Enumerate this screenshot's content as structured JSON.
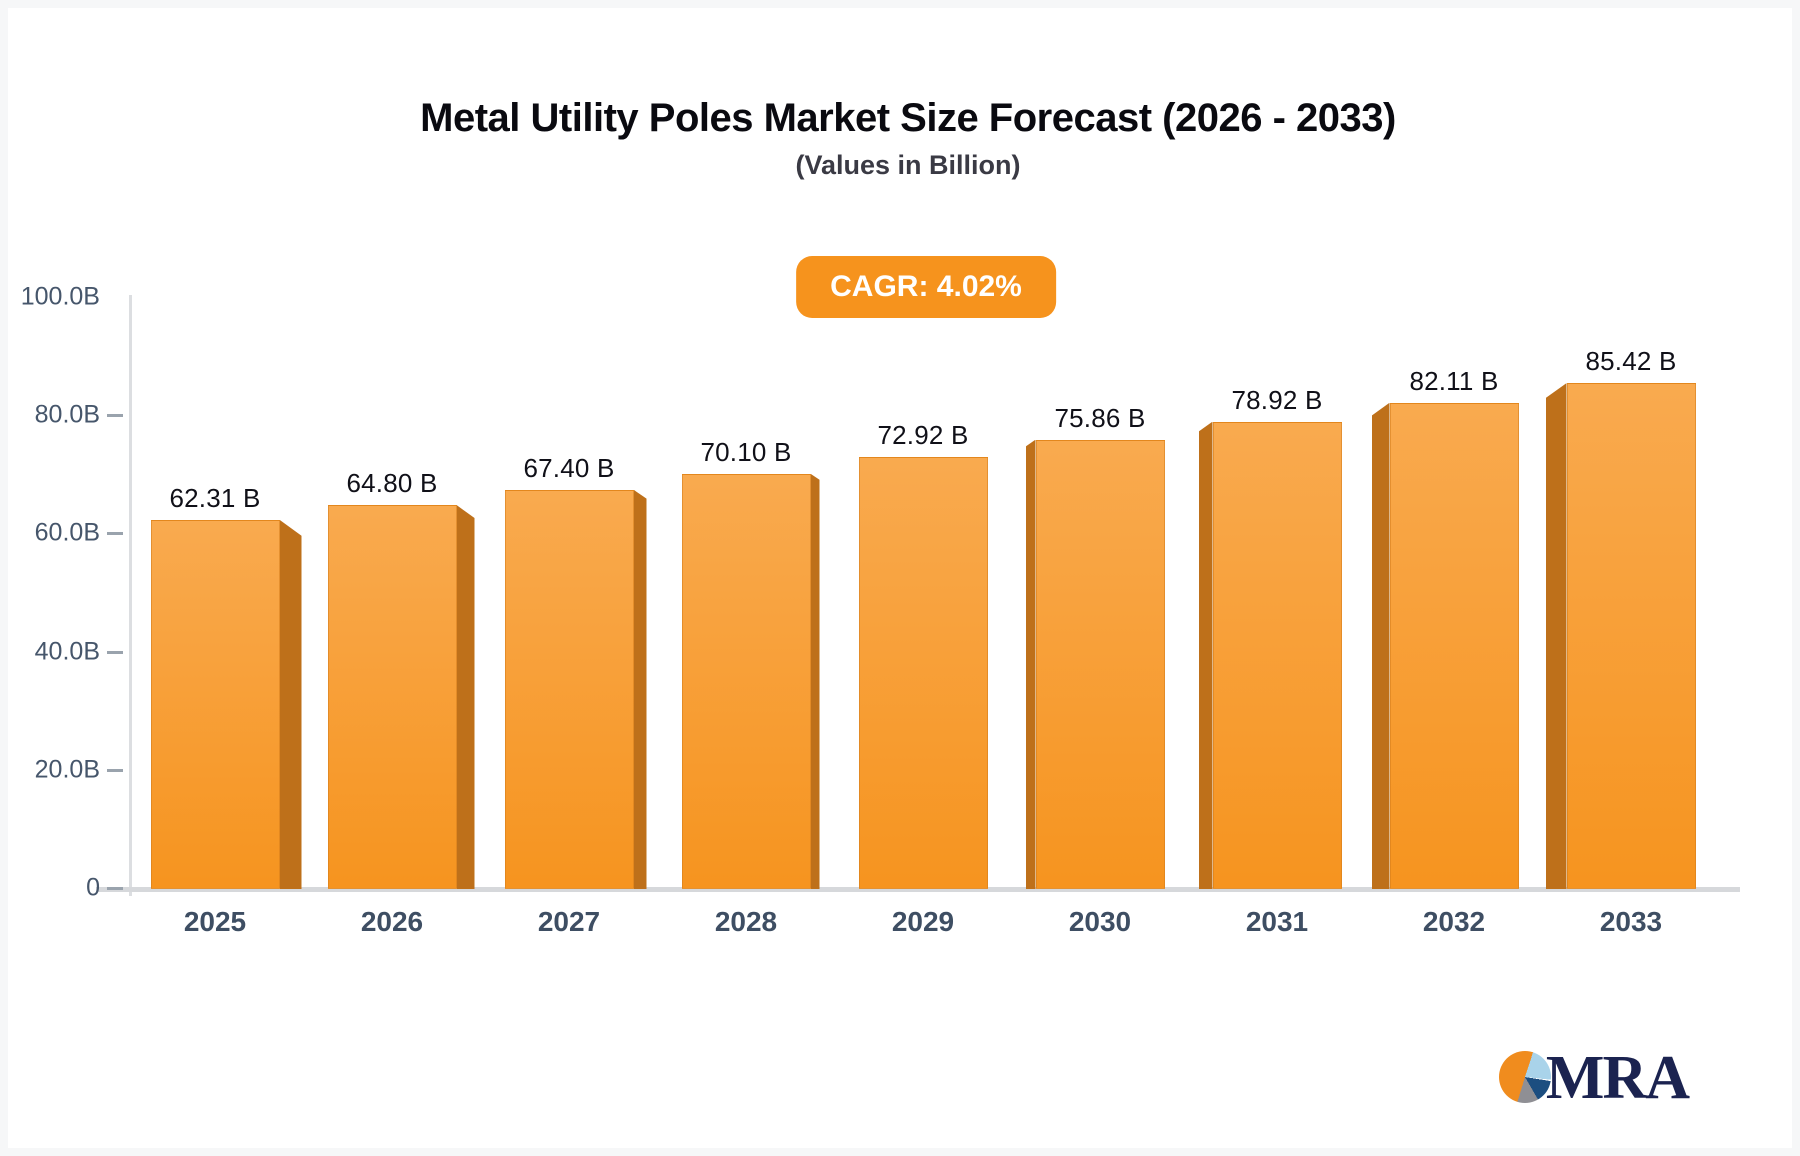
{
  "title": "Metal Utility Poles Market Size Forecast (2026 - 2033)",
  "subtitle": "(Values in Billion)",
  "badge": {
    "label": "CAGR: 4.02%",
    "bg_color": "#f6931d",
    "text_color": "#ffffff"
  },
  "chart_data": {
    "type": "bar",
    "categories": [
      "2025",
      "2026",
      "2027",
      "2028",
      "2029",
      "2030",
      "2031",
      "2032",
      "2033"
    ],
    "values": [
      62.31,
      64.8,
      67.4,
      70.1,
      72.92,
      75.86,
      78.92,
      82.11,
      85.42
    ],
    "value_labels": [
      "62.31 B",
      "64.80 B",
      "67.40 B",
      "70.10 B",
      "72.92 B",
      "75.86 B",
      "78.92 B",
      "82.11 B",
      "85.42 B"
    ],
    "title": "Metal Utility Poles Market Size Forecast (2026 - 2033)",
    "subtitle": "(Values in Billion)",
    "xlabel": "",
    "ylabel": "",
    "ylim": [
      0,
      100
    ],
    "y_ticks": [
      {
        "value": 100,
        "label": "100.0B"
      },
      {
        "value": 80,
        "label": "80.0B"
      },
      {
        "value": 60,
        "label": "60.0B"
      },
      {
        "value": 40,
        "label": "40.0B"
      },
      {
        "value": 20,
        "label": "20.0B"
      },
      {
        "value": 0,
        "label": "0"
      }
    ],
    "grid": false,
    "legend": "none",
    "bar_style": "3d",
    "bar_color_top": "#f9aa4f",
    "bar_color_bottom": "#f6941f",
    "bar_side_color": "#be701a",
    "annotation": "CAGR: 4.02%"
  },
  "logo": {
    "text": "MRA",
    "icon": "pie-chart",
    "navy": "#1b2350",
    "orange": "#f08c1e",
    "light_blue": "#a9d3ea",
    "steel_blue": "#1c4e80",
    "gray": "#8f8f94"
  }
}
